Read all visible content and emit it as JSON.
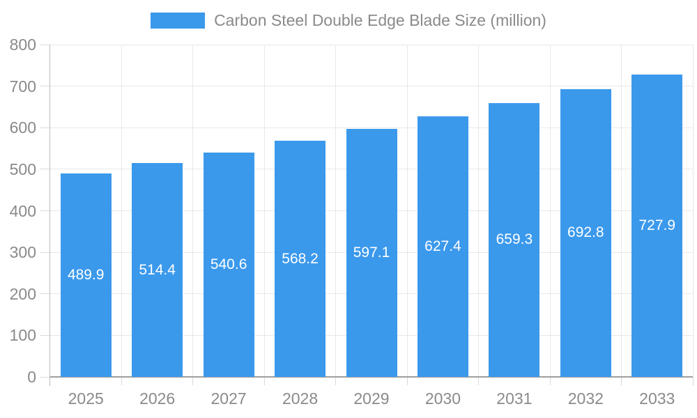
{
  "legend": {
    "label": "Carbon Steel Double Edge Blade Size (million)"
  },
  "chart_data": {
    "type": "bar",
    "title": "Carbon Steel Double Edge Blade Size (million)",
    "categories": [
      "2025",
      "2026",
      "2027",
      "2028",
      "2029",
      "2030",
      "2031",
      "2032",
      "2033"
    ],
    "values": [
      489.9,
      514.4,
      540.6,
      568.2,
      597.1,
      627.4,
      659.3,
      692.8,
      727.9
    ],
    "series_name": "Carbon Steel Double Edge Blade Size (million)",
    "xlabel": "",
    "ylabel": "",
    "ylim": [
      0,
      800
    ],
    "y_ticks": [
      0,
      100,
      200,
      300,
      400,
      500,
      600,
      700,
      800
    ],
    "grid": true,
    "legend_position": "top",
    "value_labels": "inside-center",
    "colors": {
      "bar": "#3b99ec",
      "bar_label": "#ffffff",
      "axis_text": "#8a8a8a",
      "gridline": "#e8e8e8",
      "axis_line": "#9e9e9e"
    }
  }
}
